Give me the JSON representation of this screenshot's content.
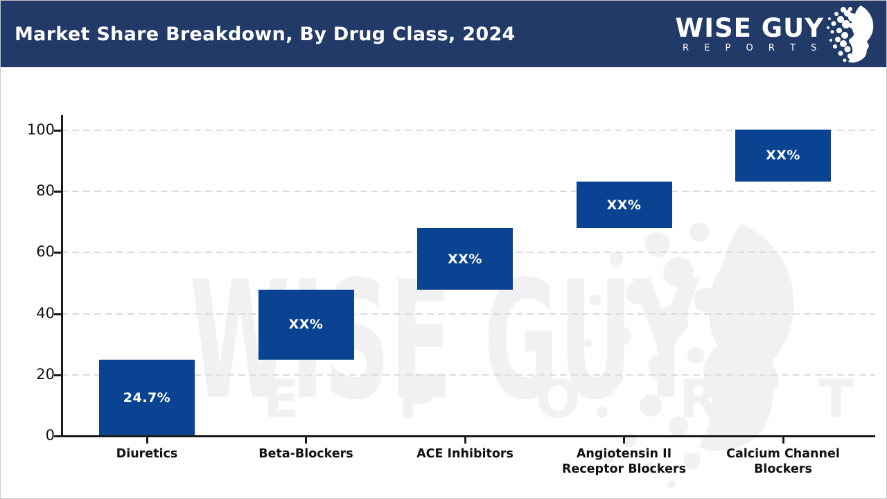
{
  "header": {
    "title": "Market Share Breakdown, By Drug Class, 2024",
    "bg_color": "#213a68",
    "logo": {
      "line1": "WISE GUY",
      "line2": "R E P O R T S"
    }
  },
  "watermark": {
    "line1": "WISE GUY",
    "line2": "R E P O R T S"
  },
  "chart_data": {
    "type": "bar",
    "subtype": "waterfall-floating-bars",
    "title": "Market Share Breakdown, By Drug Class, 2024",
    "categories": [
      "Diuretics",
      "Beta-Blockers",
      "ACE Inhibitors",
      "Angiotensin II\nReceptor Blockers",
      "Calcium Channel\nBlockers"
    ],
    "segments": [
      {
        "start": 0,
        "end": 24.7,
        "label": "24.7%"
      },
      {
        "start": 24.7,
        "end": 47.7,
        "label": "XX%"
      },
      {
        "start": 47.7,
        "end": 67.7,
        "label": "XX%"
      },
      {
        "start": 67.7,
        "end": 83.0,
        "label": "XX%"
      },
      {
        "start": 83.0,
        "end": 100,
        "label": "XX%"
      }
    ],
    "xlabel": "",
    "ylabel": "",
    "ylim": [
      0,
      100
    ],
    "yticks": [
      0,
      20,
      40,
      60,
      80,
      100
    ],
    "grid": {
      "horizontal": true,
      "style": "dashed",
      "color": "#dcdcdc"
    },
    "legend": "none",
    "bar_color": "#0a4392",
    "bar_label_color": "#ffffff",
    "axis_color": "#1a1a1a"
  }
}
